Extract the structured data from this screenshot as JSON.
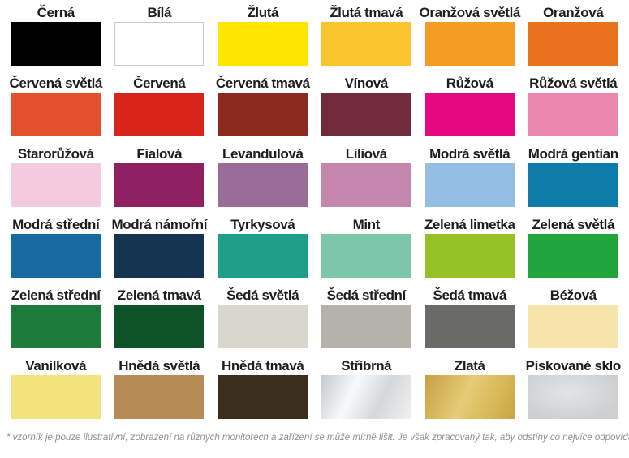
{
  "page": {
    "background": "#ffffff",
    "label_text_color": "#1d1d1b",
    "footnote_text_color": "#8f8f8f"
  },
  "swatches": [
    {
      "label": "Černá",
      "background": "#000000"
    },
    {
      "label": "Bílá",
      "background": "#ffffff",
      "border": "#c8c8c8"
    },
    {
      "label": "Žlutá",
      "background": "#ffe500"
    },
    {
      "label": "Žlutá tmavá",
      "background": "#fbc52d"
    },
    {
      "label": "Oranžová světlá",
      "background": "#f59c24"
    },
    {
      "label": "Oranžová",
      "background": "#e9721f"
    },
    {
      "label": "Červená světlá",
      "background": "#e2502d"
    },
    {
      "label": "Červená",
      "background": "#d9241c"
    },
    {
      "label": "Červená tmavá",
      "background": "#8a2a1f"
    },
    {
      "label": "Vínová",
      "background": "#712b3d"
    },
    {
      "label": "Růžová",
      "background": "#e5097f"
    },
    {
      "label": "Růžová světlá",
      "background": "#ec87af"
    },
    {
      "label": "Starorůžová",
      "background": "#f4cbde"
    },
    {
      "label": "Fialová",
      "background": "#8f2061"
    },
    {
      "label": "Levandulová",
      "background": "#9a6d99"
    },
    {
      "label": "Liliová",
      "background": "#c687af"
    },
    {
      "label": "Modrá světlá",
      "background": "#94bee4"
    },
    {
      "label": "Modrá gentian",
      "background": "#0e7ca9"
    },
    {
      "label": "Modrá střední",
      "background": "#1769a4"
    },
    {
      "label": "Modrá námořní",
      "background": "#13334f"
    },
    {
      "label": "Tyrkysová",
      "background": "#1f9e87"
    },
    {
      "label": "Mint",
      "background": "#7ec6aa"
    },
    {
      "label": "Zelená limetka",
      "background": "#97c226"
    },
    {
      "label": "Zelená světlá",
      "background": "#20a53c"
    },
    {
      "label": "Zelená střední",
      "background": "#1b7b39"
    },
    {
      "label": "Zelená tmavá",
      "background": "#0d5228"
    },
    {
      "label": "Šedá světlá",
      "background": "#d9d6ce"
    },
    {
      "label": "Šedá střední",
      "background": "#b4b2ab"
    },
    {
      "label": "Šedá tmavá",
      "background": "#6a6a68"
    },
    {
      "label": "Béžová",
      "background": "#f6e4ab"
    },
    {
      "label": "Vanilková",
      "background": "#f3e37e"
    },
    {
      "label": "Hnědá světlá",
      "background": "#b68b55"
    },
    {
      "label": "Hnědá tmavá",
      "background": "#3c2e1d"
    },
    {
      "label": "Stříbrná",
      "background": "linear-gradient(115deg, #c6c8ca 0%, #f8f9fa 35%, #d5d7d9 65%, #eef0f1 100%)",
      "finish": "metallic-silver"
    },
    {
      "label": "Zlatá",
      "background": "linear-gradient(115deg, #c59f42 0%, #e6cc77 45%, #d8b858 75%, #c9a446 100%)",
      "finish": "metallic-gold"
    },
    {
      "label": "Pískované sklo",
      "background": "radial-gradient(ellipse at 45% 40%, #e2e4e5 0%, #cdcfd1 75%)",
      "finish": "frosted-glass"
    }
  ],
  "footer": {
    "note": "* vzorník je pouze ilustrativní, zobrazení na různých monitorech a zařízení se může mírně lišit. Je však zpracovaný tak, aby odstíny co nejvíce odpovídaly."
  }
}
